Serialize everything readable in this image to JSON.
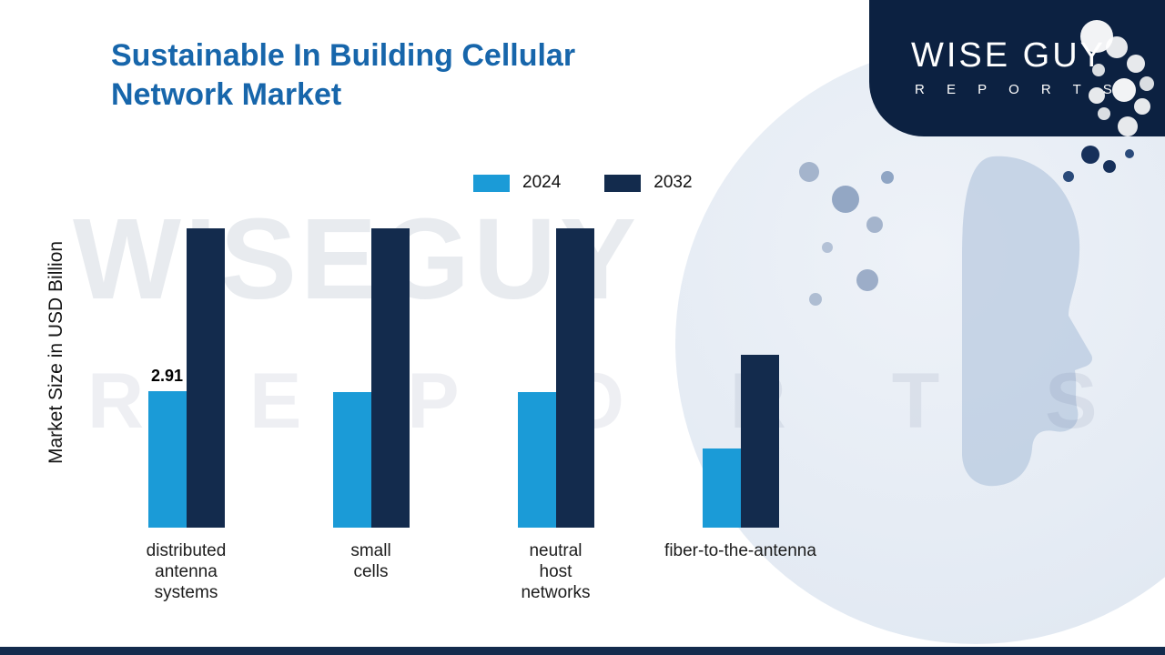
{
  "page": {
    "title": "Sustainable In Building Cellular Network Market"
  },
  "logo": {
    "line1": "WISE GUY",
    "line2": "R E P O R T S"
  },
  "watermark": {
    "line1": "WISEGUY",
    "line2": "R E P O R T S"
  },
  "chart_data": {
    "type": "bar",
    "title": "Sustainable In Building Cellular Network Market",
    "xlabel": "",
    "ylabel": "Market Size in USD Billion",
    "ylim": [
      0,
      7
    ],
    "grid": false,
    "legend_position": "top",
    "categories": [
      "distributed antenna systems",
      "small cells",
      "neutral host networks",
      "fiber-to-the-antenna"
    ],
    "category_display": [
      "distributed\nantenna\nsystems",
      "small\ncells",
      "neutral\nhost\nnetworks",
      "fiber-to-the-antenna"
    ],
    "series": [
      {
        "name": "2024",
        "color": "#1b9bd7",
        "values": [
          2.91,
          2.9,
          2.9,
          1.7
        ]
      },
      {
        "name": "2032",
        "color": "#132b4d",
        "values": [
          6.4,
          6.4,
          6.4,
          3.7
        ]
      }
    ],
    "data_labels": [
      [
        "2.91",
        "",
        "",
        ""
      ],
      [
        "",
        "",
        "",
        ""
      ]
    ]
  },
  "colors": {
    "title_blue": "#1766ab",
    "series_2024": "#1b9bd7",
    "series_2032": "#132b4d",
    "logo_navy": "#0c2141",
    "bottom_stripe": "#132b4d",
    "bg_circle": "#e3eaf3"
  }
}
